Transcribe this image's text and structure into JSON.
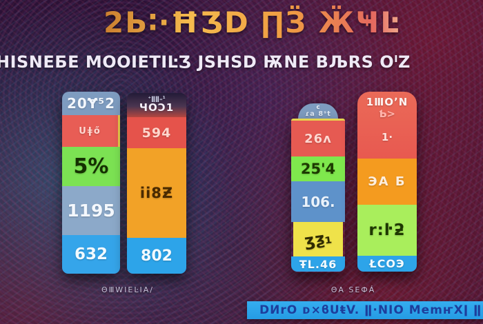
{
  "title": "2Ь∶·ĦƷD ∏Ӟ ӜҸĿ",
  "subtitle": "HISNEБE MOOIETIĿƷ JSHSD ѬNE BЉRS OˡZ",
  "chart_data": {
    "type": "bar",
    "subtype": "stacked-column-infographic",
    "legend_position": "none",
    "grid": false,
    "note_text_is_garbled": "labels transcribed as rendered glyphs",
    "groups": [
      {
        "caption": "ΘⅢWIEĿIA/",
        "columns": [
          {
            "header": "20Ɏ⁵2",
            "header_bg": "#7e9cc0",
            "segments": [
              {
                "label": "Uǂő",
                "color": "#e85d55",
                "height_frac": 0.2
              },
              {
                "label": "5%",
                "color": "#7ce253",
                "height_frac": 0.25
              },
              {
                "label": "1195",
                "color": "#8ca9c9",
                "height_frac": 0.31
              },
              {
                "label": "632",
                "color": "#35a5ea",
                "height_frac": 0.24
              }
            ]
          },
          {
            "header_line1": "⁺ǁǁ₌¹",
            "header_line2": "ЧOƆ1",
            "segments": [
              {
                "label": "594",
                "color": "#e5534b",
                "height_frac": 0.2
              },
              {
                "label": "ii8Ƶ",
                "color": "#f2a227",
                "height_frac": 0.57
              },
              {
                "label": "802",
                "color": "#2da4e9",
                "height_frac": 0.23
              }
            ]
          }
        ]
      },
      {
        "caption": "ΘA SЕФÁ",
        "columns": [
          {
            "header_line1": "c",
            "header_line2": "ɾa 8ˢt",
            "header_bg": "#7e9cc0",
            "segments": [
              {
                "label": "26ʌ",
                "color": "#e65a52",
                "height_frac": 0.24
              },
              {
                "label": "25'4",
                "color": "#7fe84d",
                "height_frac": 0.16
              },
              {
                "label": "106.",
                "color": "#5e92ca",
                "height_frac": 0.26
              },
              {
                "label": "ӡƺ₁",
                "color": "#efe24a",
                "height_frac": 0.22
              },
              {
                "label": "ŦL.46",
                "color": "#2da4e9",
                "height_frac": 0.1
              }
            ]
          },
          {
            "header_line1": "1ⅢOʼN",
            "header_line2": "Ƅ>",
            "segments": [
              {
                "label": "1·",
                "color": "#e85e50",
                "height_frac": 0.37
              },
              {
                "label": "ЭA Б",
                "color": "#f49b1f",
                "height_frac": 0.26
              },
              {
                "label": "r:ŀƻ",
                "color": "#a9ee5c",
                "height_frac": 0.28
              },
              {
                "label": "ŁCOЭ",
                "color": "#2da4e9",
                "height_frac": 0.09
              }
            ]
          }
        ]
      }
    ]
  },
  "banner": {
    "text": "DИrO ᴅ×ϐUŧV. ǁ·NIO MemҥXǀ ǁM",
    "bg": "#2da4e9",
    "text_color": "#1d3e9c"
  },
  "colors": {
    "background_base": "#2b1136",
    "background_teal_accent": "#2b7a9c",
    "background_maroon_accent": "#941a30",
    "title_gradient_start": "#c97c2e",
    "title_gradient_end": "#e4695f",
    "subtitle_color": "#efeaf6"
  }
}
